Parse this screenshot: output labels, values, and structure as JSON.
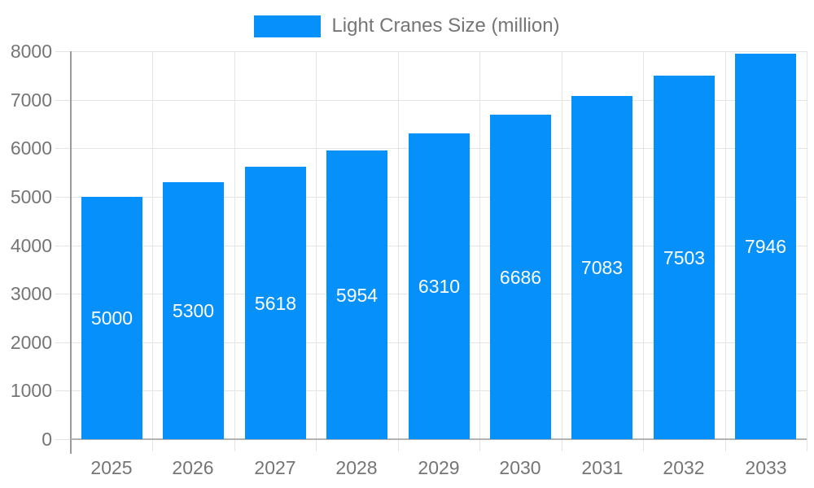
{
  "chart_data": {
    "type": "bar",
    "title": "",
    "legend": "Light Cranes Size (million)",
    "legend_position": "top",
    "categories": [
      "2025",
      "2026",
      "2027",
      "2028",
      "2029",
      "2030",
      "2031",
      "2032",
      "2033"
    ],
    "series": [
      {
        "name": "Light Cranes Size (million)",
        "values": [
          5000,
          5300,
          5618,
          5954,
          6310,
          6686,
          7083,
          7503,
          7946
        ]
      }
    ],
    "bar_value_labels": [
      "5000",
      "5300",
      "5618",
      "5954",
      "6310",
      "6686",
      "7083",
      "7503",
      "7946"
    ],
    "value_labels_inside_bars": true,
    "xlabel": "",
    "ylabel": "",
    "ylim": [
      0,
      8000
    ],
    "yticks": [
      0,
      1000,
      2000,
      3000,
      4000,
      5000,
      6000,
      7000,
      8000
    ],
    "grid": true
  },
  "colors": {
    "bar": "#0690f9",
    "axis_text": "#757575",
    "legend_text": "#757575",
    "bar_label_text": "#ffffff",
    "gridline": "#e4e4e4",
    "y_axis_line": "#9b9b9b",
    "x_axis_line": "#b2b2b2",
    "background": "#ffffff"
  }
}
